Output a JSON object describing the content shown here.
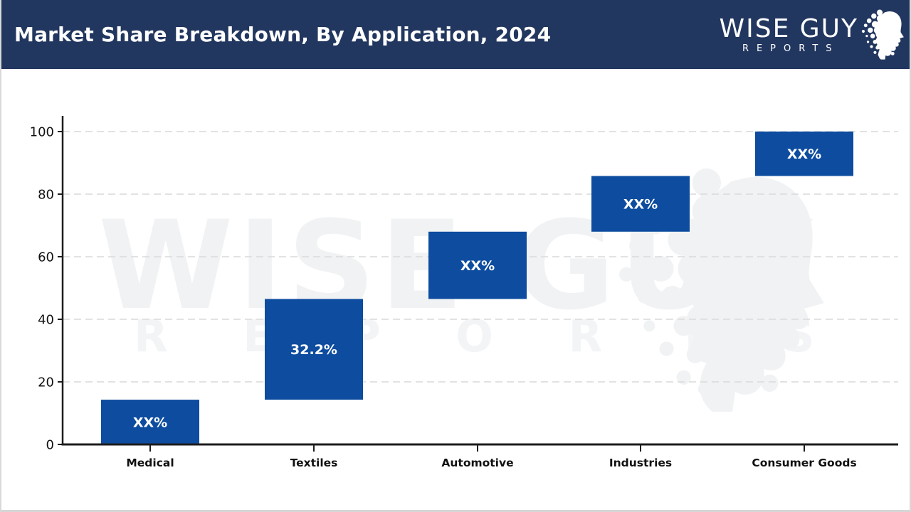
{
  "header": {
    "title": "Market Share Breakdown, By Application, 2024",
    "logo": {
      "brand": "WISE GUY",
      "sub": "REPORTS",
      "icon": "dotted-head-profile-icon"
    }
  },
  "watermark": {
    "brand": "WISE GUY",
    "sub": "R E P O R T S",
    "icon": "dotted-head-profile-icon"
  },
  "colors": {
    "header_bg": "#22375f",
    "bar": "#0d4c9f",
    "bar_label_text": "#ffffff",
    "grid": "#d9d9d9",
    "axis": "#1c1c1c",
    "tick_label": "#111111",
    "watermark": "#f1f2f4",
    "page_border": "#d9d9d9"
  },
  "chart_data": {
    "type": "bar",
    "subtype": "floating-waterfall",
    "title": "Market Share Breakdown, By Application, 2024",
    "xlabel": "",
    "ylabel": "",
    "categories": [
      "Medical",
      "Textiles",
      "Automotive",
      "Industries",
      "Consumer Goods"
    ],
    "bars": [
      {
        "category": "Medical",
        "start": 0,
        "end": 14.3,
        "height": 14.3,
        "value_label": "XX%"
      },
      {
        "category": "Textiles",
        "start": 14.3,
        "end": 46.5,
        "height": 32.2,
        "value_label": "32.2%"
      },
      {
        "category": "Automotive",
        "start": 46.5,
        "end": 68.0,
        "height": 21.5,
        "value_label": "XX%"
      },
      {
        "category": "Industries",
        "start": 68.0,
        "end": 85.8,
        "height": 17.8,
        "value_label": "XX%"
      },
      {
        "category": "Consumer Goods",
        "start": 85.8,
        "end": 100.0,
        "height": 14.2,
        "value_label": "XX%"
      }
    ],
    "ylim": [
      0,
      100
    ],
    "yticks": [
      0,
      20,
      40,
      60,
      80,
      100
    ],
    "grid": "horizontal-dashed",
    "legend": null
  }
}
